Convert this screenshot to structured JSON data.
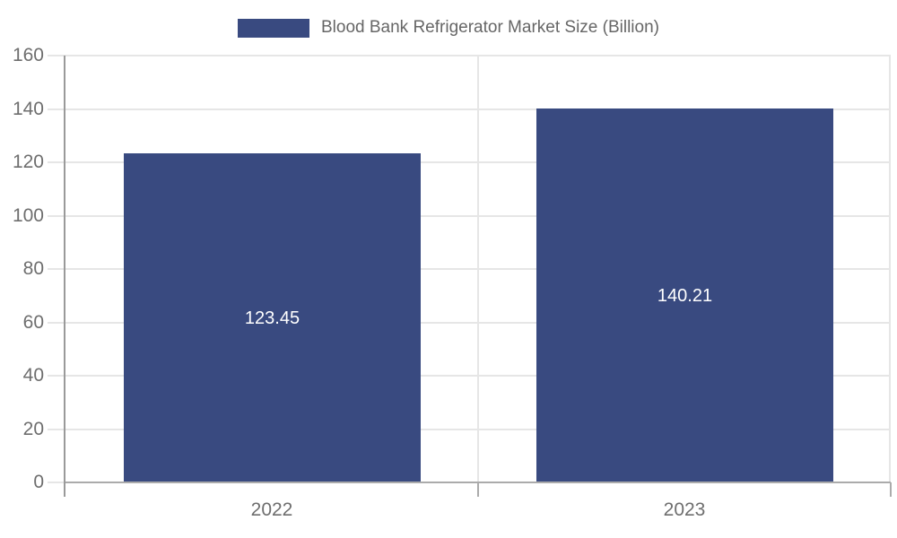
{
  "chart_data": {
    "type": "bar",
    "title": "Blood Bank Refrigerator Market Size (Billion)",
    "categories": [
      "2022",
      "2023"
    ],
    "values": [
      123.45,
      140.21
    ],
    "value_labels": [
      "123.45",
      "140.21"
    ],
    "xlabel": "",
    "ylabel": "",
    "ylim": [
      0,
      160
    ],
    "yticks": [
      0,
      20,
      40,
      60,
      80,
      100,
      120,
      140,
      160
    ],
    "grid": true,
    "legend_position": "top",
    "legend_entries": [
      "Blood Bank Refrigerator Market Size (Billion)"
    ],
    "colors": {
      "bar": "#394a80",
      "gridline": "#e6e6e6",
      "y_axis_line": "#9a9a9a",
      "x_axis_line": "#ababab",
      "tick_text": "#6e6e6e",
      "legend_text": "#666666",
      "value_text": "#ffffff",
      "background": "#ffffff"
    }
  }
}
